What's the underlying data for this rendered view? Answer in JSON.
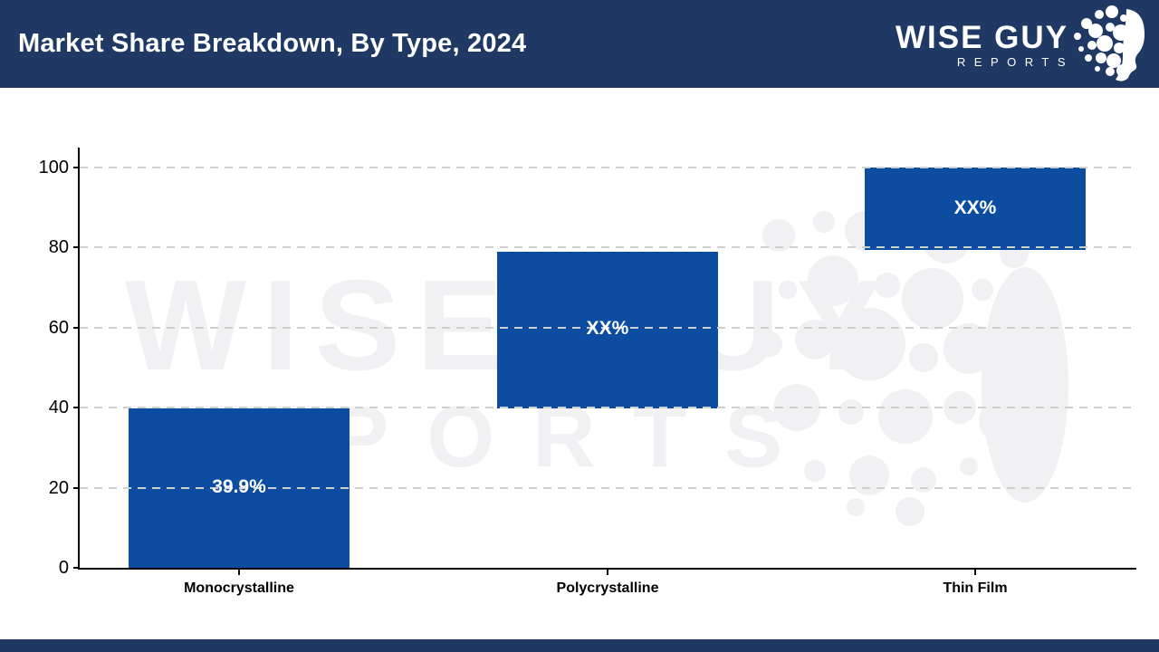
{
  "header": {
    "title": "Market Share Breakdown, By Type, 2024",
    "background_color": "#1F3864",
    "logo_line1": "WISE GUY",
    "logo_line2": "REPORTS"
  },
  "watermark": {
    "line1": "WISE GUY",
    "line2": "REPORTS"
  },
  "chart_data": {
    "type": "bar",
    "subtype": "waterfall",
    "title": "Market Share Breakdown, By Type, 2024",
    "categories": [
      "Monocrystalline",
      "Polycrystalline",
      "Thin Film"
    ],
    "segments": [
      {
        "category": "Monocrystalline",
        "start": 0,
        "end": 39.9,
        "label": "39.9%"
      },
      {
        "category": "Polycrystalline",
        "start": 39.9,
        "end": 78.9,
        "label": "XX%"
      },
      {
        "category": "Thin Film",
        "start": 79.3,
        "end": 100,
        "label": "XX%"
      }
    ],
    "yticks": [
      0,
      20,
      40,
      60,
      80,
      100
    ],
    "ylim": [
      0,
      100
    ],
    "xlabel": "",
    "ylabel": "",
    "legend": "none",
    "grid": "horizontal-dashed",
    "bar_color": "#0D4DA1",
    "gridline_color": "#CFCFCF",
    "axis_color": "#000000"
  }
}
